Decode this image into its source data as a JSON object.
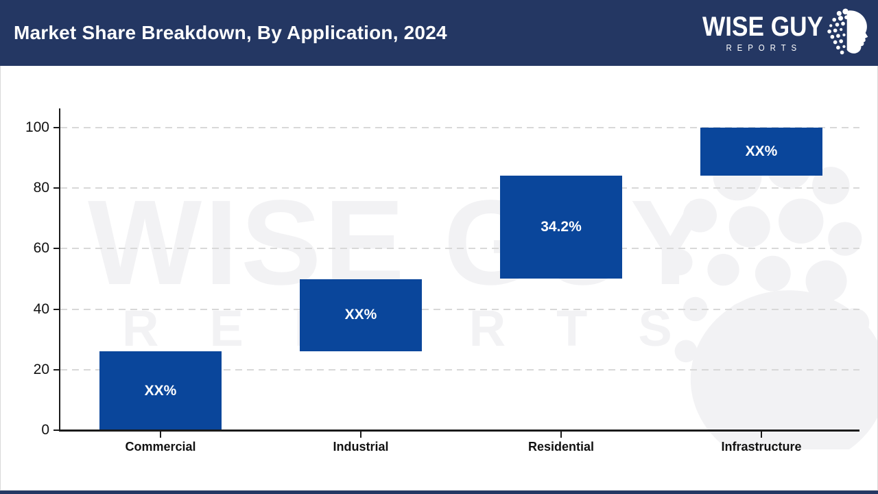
{
  "header": {
    "title": "Market Share Breakdown, By Application, 2024",
    "logo": {
      "name": "WISE GUY",
      "sub": "REPORTS"
    }
  },
  "watermark": {
    "name": "WISE GUY",
    "sub": "REPORTS"
  },
  "chart_data": {
    "type": "bar",
    "variant": "floating-waterfall",
    "title": "Market Share Breakdown, By Application, 2024",
    "categories": [
      "Commercial",
      "Industrial",
      "Residential",
      "Infrastructure"
    ],
    "segments": [
      {
        "category": "Commercial",
        "start": 0,
        "end": 26,
        "label": "XX%"
      },
      {
        "category": "Industrial",
        "start": 26,
        "end": 50,
        "label": "XX%"
      },
      {
        "category": "Residential",
        "start": 50,
        "end": 84.2,
        "label": "34.2%"
      },
      {
        "category": "Infrastructure",
        "start": 84.2,
        "end": 100,
        "label": "XX%"
      }
    ],
    "yticks": [
      0,
      20,
      40,
      60,
      80,
      100
    ],
    "ylim": [
      0,
      106
    ],
    "xlabel": "",
    "ylabel": "",
    "legend": "none",
    "grid": "horizontal-dashed"
  },
  "colors": {
    "header_bg": "#243763",
    "footer_bg": "#243763",
    "bar": "#0a469b",
    "bar_label": "#ffffff",
    "axis": "#1a1a1a",
    "grid": "#d8d8d8",
    "tick_label": "#111111",
    "watermark": "#f2f2f4",
    "frame": "#d9d9d9"
  }
}
